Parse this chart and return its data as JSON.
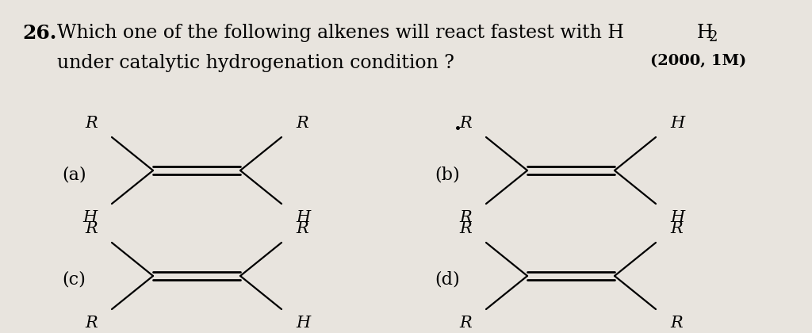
{
  "background_color": "#e8e4de",
  "question_number": "26.",
  "question_line1a": "Which one of the following alkenes will react fastest with H",
  "question_line1b": "2",
  "question_line2": "under catalytic hydrogenation condition ?",
  "marks": "(2000, 1M)",
  "options": [
    "(a)",
    "(b)",
    "(c)",
    "(d)"
  ],
  "title_fontsize": 18,
  "label_fontsize": 15,
  "option_fontsize": 16,
  "structures": {
    "a": {
      "top_left": "R",
      "top_right": "R",
      "bot_left": "H",
      "bot_right": "H"
    },
    "b": {
      "top_left": "R",
      "top_right": "H",
      "bot_left": "R",
      "bot_right": "H",
      "dot": true
    },
    "c": {
      "top_left": "R",
      "top_right": "R",
      "bot_left": "R",
      "bot_right": "H"
    },
    "d": {
      "top_left": "R",
      "top_right": "R",
      "bot_left": "R",
      "bot_right": "R"
    }
  }
}
